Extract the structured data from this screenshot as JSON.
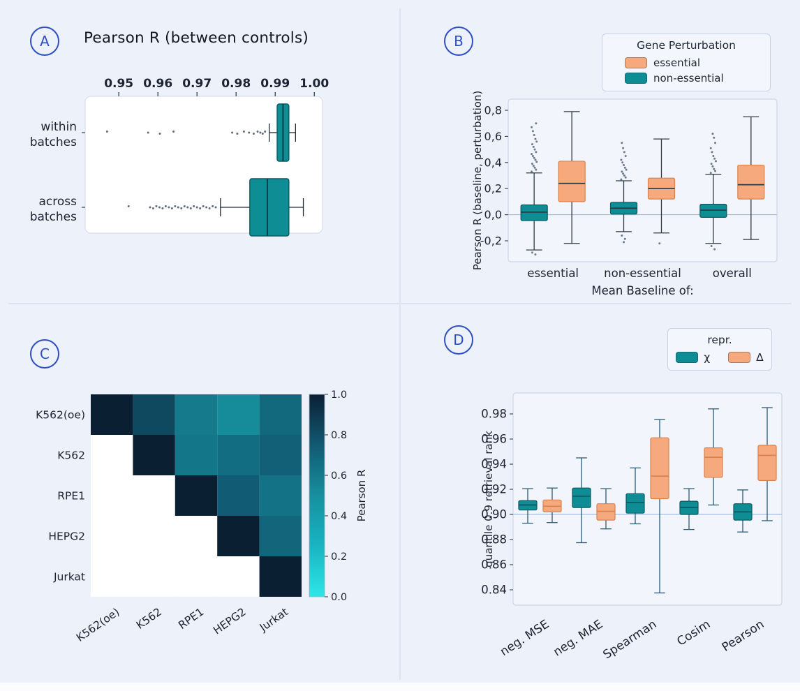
{
  "page": {
    "background": "#edf1f9",
    "accent": "#2d4fc4",
    "teal": "#0f8d95",
    "orange": "#f6a97d",
    "divider": "#dce3f0"
  },
  "panelA": {
    "label": "A",
    "title": "Pearson R (between controls)"
  },
  "panelB": {
    "label": "B",
    "legend_title": "Gene Perturbation",
    "legend_items": [
      {
        "label": "essential",
        "color": "#f6a97d"
      },
      {
        "label": "non-essential",
        "color": "#0f8d95"
      }
    ]
  },
  "panelC": {
    "label": "C"
  },
  "panelD": {
    "label": "D",
    "legend_title": "repr.",
    "legend_items": [
      {
        "label": "χ",
        "color": "#0f8d95"
      },
      {
        "label": "Δ",
        "color": "#f6a97d"
      }
    ]
  },
  "chart_data": [
    {
      "panel": "A",
      "type": "boxplot_h",
      "title": "Pearson R (between controls)",
      "xlim": [
        0.9414,
        1.0021
      ],
      "xticks": [
        0.95,
        0.96,
        0.97,
        0.98,
        0.99,
        1.0
      ],
      "xtick_labels": [
        "0.95",
        "0.96",
        "0.97",
        "0.98",
        "0.99",
        "1.00"
      ],
      "box_color": "#0f8d95",
      "categories": [
        "within batches",
        "across batches"
      ],
      "boxes": [
        {
          "category": "within batches",
          "lo": 0.9885,
          "q1": 0.9905,
          "med": 0.992,
          "q3": 0.9935,
          "hi": 0.9952,
          "outliers": [
            0.947,
            0.9575,
            0.9605,
            0.964,
            0.979,
            0.9803,
            0.982,
            0.9833,
            0.9845,
            0.9855,
            0.9862,
            0.9868,
            0.9874
          ]
        },
        {
          "category": "across batches",
          "lo": 0.976,
          "q1": 0.9835,
          "med": 0.988,
          "q3": 0.9935,
          "hi": 0.9972,
          "outliers": [
            0.9525,
            0.958,
            0.9588,
            0.9596,
            0.9604,
            0.9612,
            0.962,
            0.9628,
            0.9636,
            0.9644,
            0.9652,
            0.966,
            0.9668,
            0.9676,
            0.9684,
            0.9692,
            0.97,
            0.9708,
            0.9716,
            0.9724,
            0.9732,
            0.974,
            0.9748
          ]
        }
      ]
    },
    {
      "panel": "B",
      "type": "boxplot_v_grouped",
      "ylabel": "Pearson R (baseline, perturbation)",
      "xlabel": "Mean Baseline of:",
      "ylim": [
        -0.36,
        0.885
      ],
      "yticks": [
        0.8,
        0.6,
        0.4,
        0.2,
        0.0,
        -0.2
      ],
      "ytick_labels": [
        "0,8",
        "0,6",
        "0,4",
        "0,2",
        "0,0",
        "-0,2"
      ],
      "zero_line": 0.0,
      "categories": [
        "essential",
        "non-essential",
        "overall"
      ],
      "series": [
        {
          "name": "non-essential",
          "fill": "#0f8d95",
          "edge": "#0a5962",
          "boxes": [
            {
              "lo": -0.27,
              "q1": -0.045,
              "med": 0.02,
              "q3": 0.075,
              "hi": 0.32,
              "out_hi": [
                0.33,
                0.345,
                0.36,
                0.375,
                0.39,
                0.405,
                0.42,
                0.435,
                0.45,
                0.465,
                0.48,
                0.5,
                0.52,
                0.54,
                0.56,
                0.58,
                0.61,
                0.64,
                0.67,
                0.7
              ],
              "out_lo": [
                -0.29,
                -0.305
              ]
            },
            {
              "lo": -0.13,
              "q1": 0.005,
              "med": 0.05,
              "q3": 0.095,
              "hi": 0.26,
              "out_hi": [
                0.27,
                0.285,
                0.3,
                0.315,
                0.33,
                0.345,
                0.36,
                0.38,
                0.4,
                0.42,
                0.45,
                0.48,
                0.51,
                0.55
              ],
              "out_lo": [
                -0.16,
                -0.185,
                -0.21
              ]
            },
            {
              "lo": -0.22,
              "q1": -0.02,
              "med": 0.035,
              "q3": 0.08,
              "hi": 0.31,
              "out_hi": [
                0.32,
                0.335,
                0.35,
                0.37,
                0.39,
                0.41,
                0.43,
                0.45,
                0.48,
                0.51,
                0.55,
                0.59,
                0.62
              ],
              "out_lo": [
                -0.24,
                -0.265
              ]
            }
          ]
        },
        {
          "name": "essential",
          "fill": "#f6a97d",
          "edge": "#d8824f",
          "boxes": [
            {
              "lo": -0.22,
              "q1": 0.1,
              "med": 0.24,
              "q3": 0.41,
              "hi": 0.79,
              "out_hi": [],
              "out_lo": []
            },
            {
              "lo": -0.14,
              "q1": 0.12,
              "med": 0.2,
              "q3": 0.28,
              "hi": 0.58,
              "out_hi": [],
              "out_lo": [
                -0.22
              ]
            },
            {
              "lo": -0.19,
              "q1": 0.12,
              "med": 0.23,
              "q3": 0.38,
              "hi": 0.75,
              "out_hi": [],
              "out_lo": []
            }
          ]
        }
      ]
    },
    {
      "panel": "C",
      "type": "heatmap",
      "labels": [
        "K562(oe)",
        "K562",
        "RPE1",
        "HEPG2",
        "Jurkat"
      ],
      "matrix": [
        [
          1.0,
          0.82,
          0.6,
          0.52,
          0.68
        ],
        [
          null,
          1.0,
          0.62,
          0.66,
          0.72
        ],
        [
          null,
          null,
          1.0,
          0.74,
          0.64
        ],
        [
          null,
          null,
          null,
          1.0,
          0.7
        ],
        [
          null,
          null,
          null,
          null,
          1.0
        ]
      ],
      "colorbar": {
        "label": "Pearson R",
        "min": 0,
        "max": 1,
        "ticks": [
          "1.0",
          "0.8",
          "0.6",
          "0.4",
          "0.2",
          "0.0"
        ]
      },
      "colormap": [
        [
          0,
          "#2ee6e6"
        ],
        [
          0.25,
          "#1ab4c2"
        ],
        [
          0.5,
          "#16909e"
        ],
        [
          0.75,
          "#115a72"
        ],
        [
          1,
          "#0b1f33"
        ]
      ]
    },
    {
      "panel": "D",
      "type": "boxplot_v_grouped",
      "ylabel": "quantile 0.9 retrieval rank",
      "ylim": [
        0.828,
        0.997
      ],
      "yticks": [
        0.98,
        0.96,
        0.94,
        0.92,
        0.9,
        0.88,
        0.86,
        0.84
      ],
      "ytick_labels": [
        "0.98",
        "0.96",
        "0.94",
        "0.92",
        "0.90",
        "0.88",
        "0.86",
        "0.84"
      ],
      "ref_line": 0.9,
      "categories": [
        "neg. MSE",
        "neg. MAE",
        "Spearman",
        "Cosim",
        "Pearson"
      ],
      "series": [
        {
          "name": "χ",
          "fill": "#0f8d95",
          "edge": "#0a5962",
          "boxes": [
            {
              "lo": 0.893,
              "q1": 0.9035,
              "med": 0.9075,
              "q3": 0.911,
              "hi": 0.9205
            },
            {
              "lo": 0.8775,
              "q1": 0.9055,
              "med": 0.9145,
              "q3": 0.921,
              "hi": 0.945
            },
            {
              "lo": 0.8925,
              "q1": 0.901,
              "med": 0.9095,
              "q3": 0.9165,
              "hi": 0.937
            },
            {
              "lo": 0.888,
              "q1": 0.9,
              "med": 0.9055,
              "q3": 0.9105,
              "hi": 0.9205
            },
            {
              "lo": 0.886,
              "q1": 0.8955,
              "med": 0.902,
              "q3": 0.9085,
              "hi": 0.9195
            }
          ]
        },
        {
          "name": "Δ",
          "fill": "#f6a97d",
          "edge": "#d8824f",
          "boxes": [
            {
              "lo": 0.8935,
              "q1": 0.902,
              "med": 0.9065,
              "q3": 0.9115,
              "hi": 0.921
            },
            {
              "lo": 0.8885,
              "q1": 0.8955,
              "med": 0.9025,
              "q3": 0.9085,
              "hi": 0.9205
            },
            {
              "lo": 0.8375,
              "q1": 0.9125,
              "med": 0.9305,
              "q3": 0.961,
              "hi": 0.9755
            },
            {
              "lo": 0.9075,
              "q1": 0.9295,
              "med": 0.9455,
              "q3": 0.953,
              "hi": 0.984
            },
            {
              "lo": 0.895,
              "q1": 0.927,
              "med": 0.947,
              "q3": 0.955,
              "hi": 0.985
            }
          ]
        }
      ]
    }
  ]
}
